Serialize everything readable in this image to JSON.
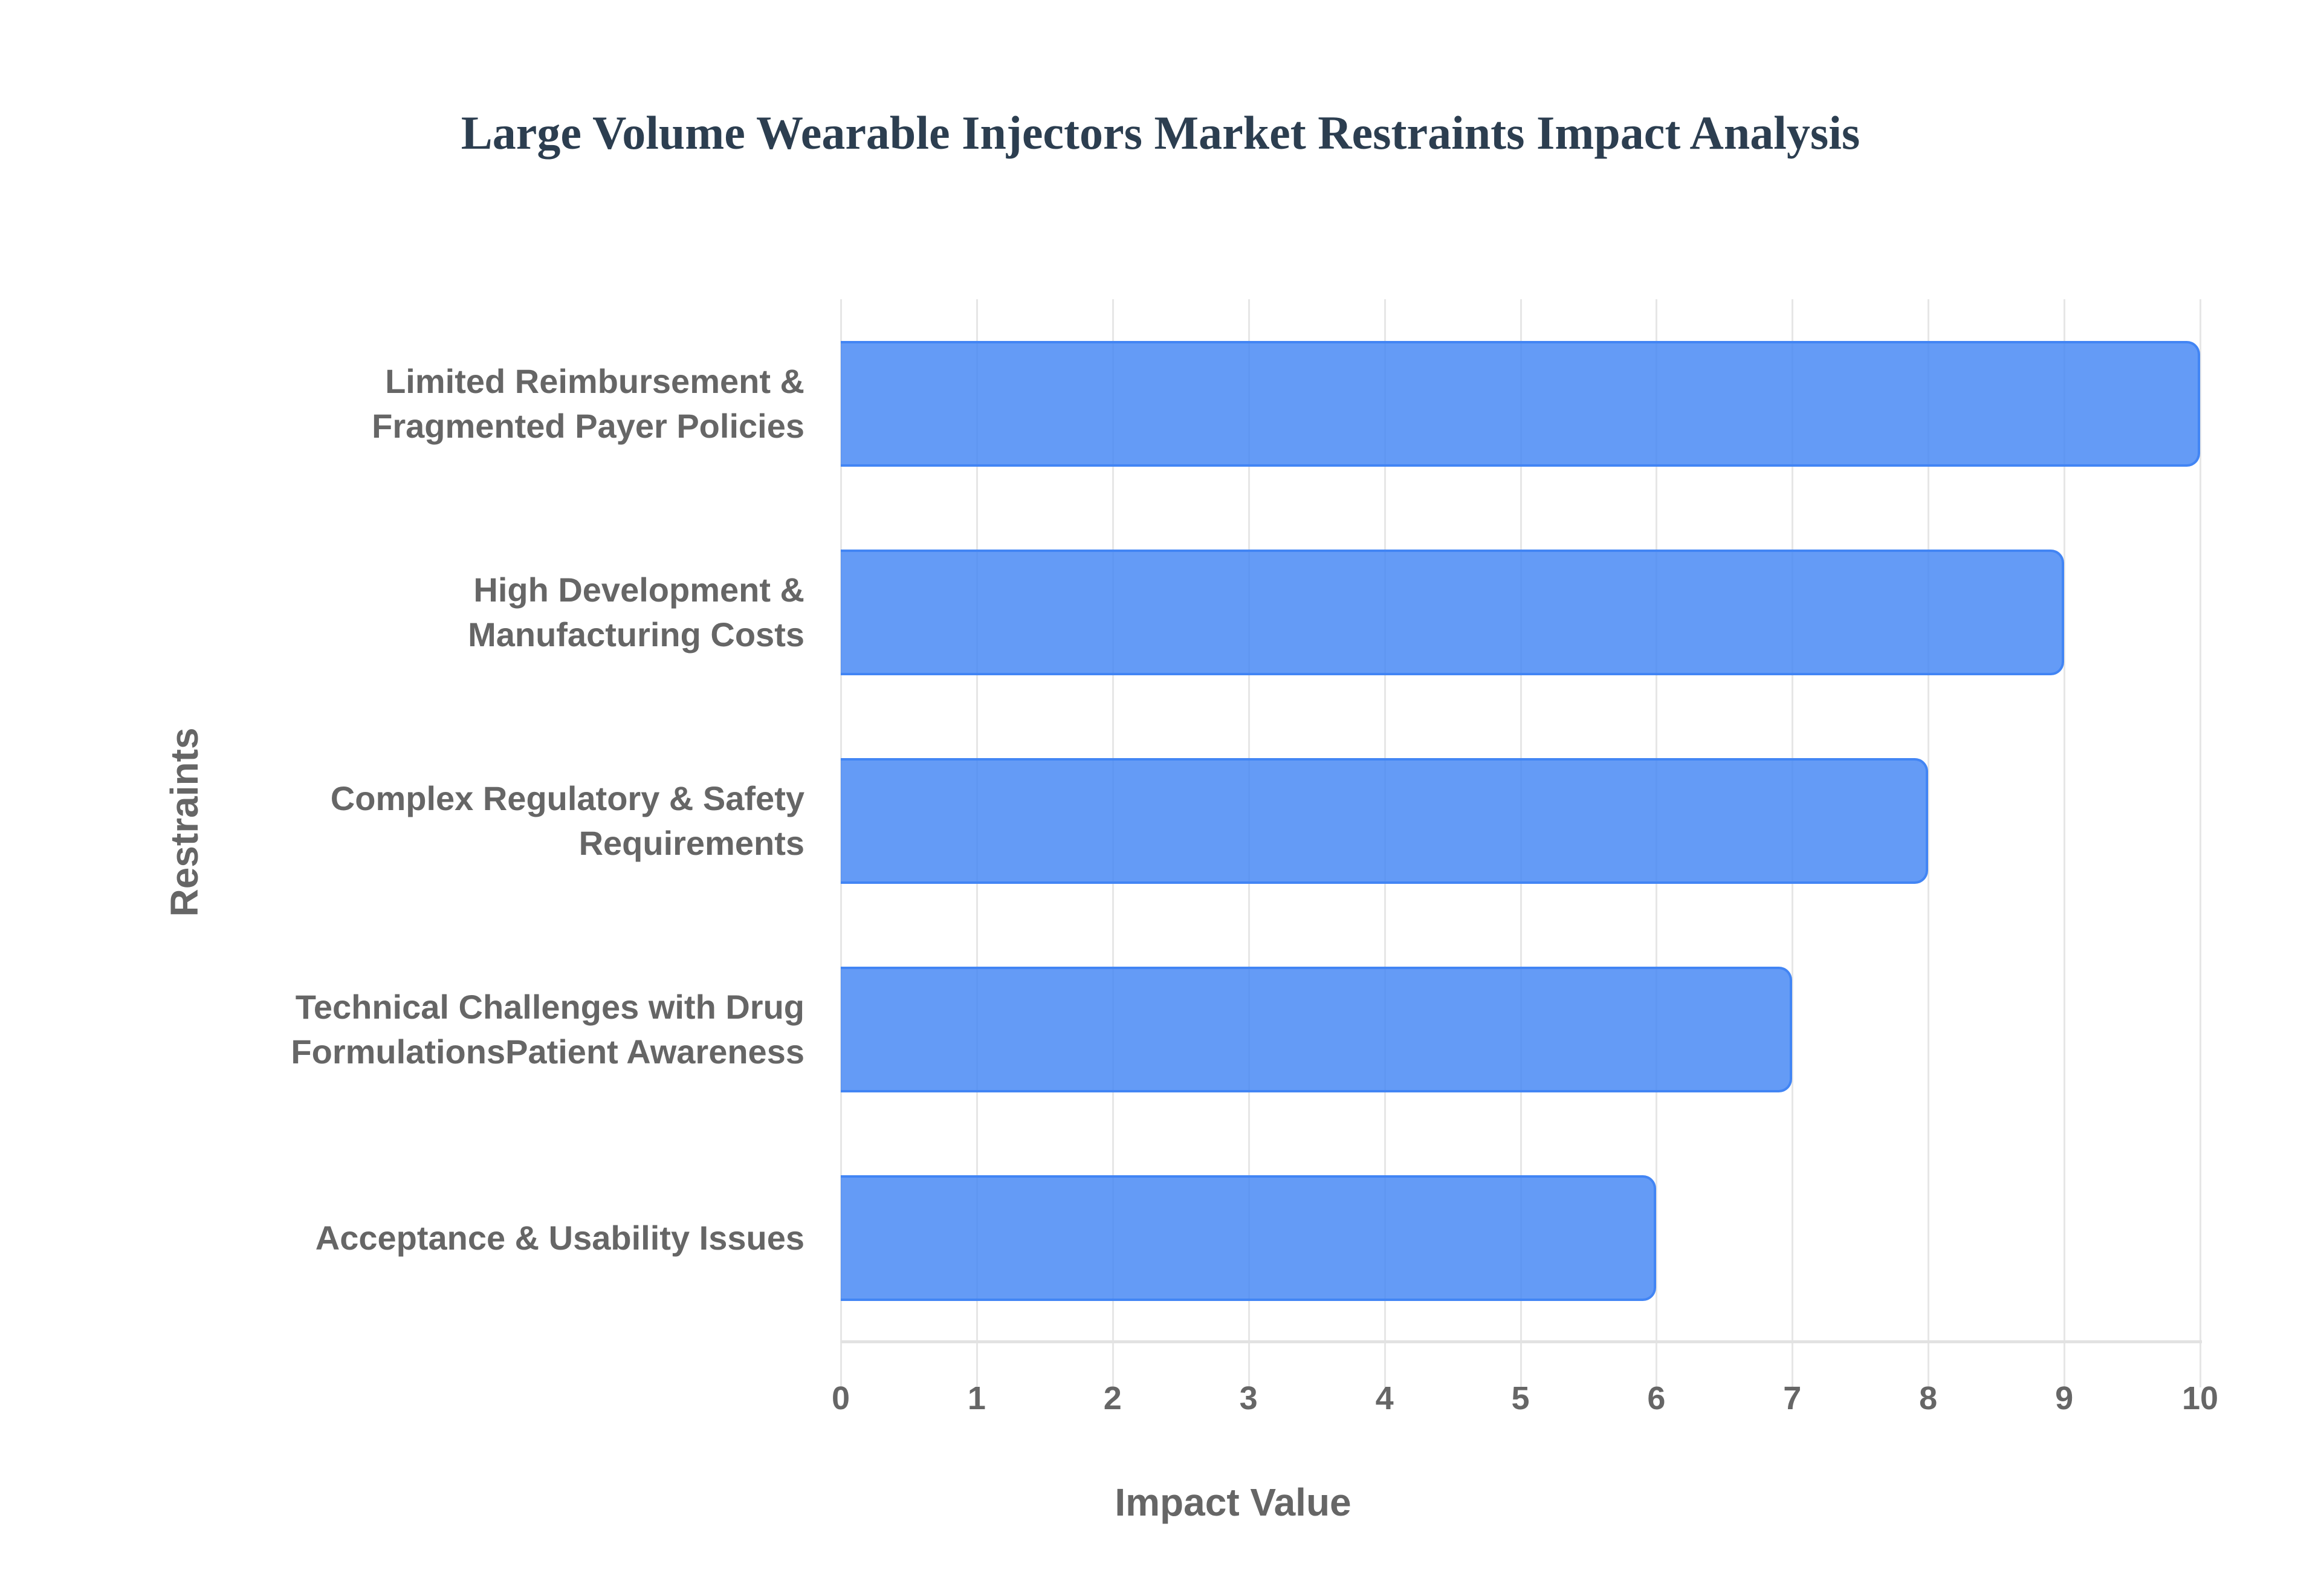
{
  "chart_data": {
    "type": "bar",
    "orientation": "horizontal",
    "title": "Large Volume Wearable Injectors Market Restraints Impact Analysis",
    "xlabel": "Impact Value",
    "ylabel": "Restraints",
    "categories": [
      "Limited Reimbursement & Fragmented Payer Policies",
      "High Development & Manufacturing Costs",
      "Complex Regulatory & Safety Requirements",
      "Technical Challenges with Drug FormulationsPatient Awareness",
      "Acceptance & Usability Issues"
    ],
    "values": [
      10,
      9,
      8,
      7,
      6
    ],
    "xlim": [
      0,
      10
    ],
    "xticks": [
      "0",
      "1",
      "2",
      "3",
      "4",
      "5",
      "6",
      "7",
      "8",
      "9",
      "10"
    ],
    "grid": true,
    "legend": "none",
    "bar_color": "#4285f4"
  },
  "labels": {
    "title": "Large Volume Wearable Injectors Market Restraints Impact Analysis",
    "xaxis_title": "Impact Value",
    "yaxis_title": "Restraints",
    "y": [
      [
        "Limited Reimbursement &",
        "Fragmented Payer Policies"
      ],
      [
        "High Development &",
        "Manufacturing Costs"
      ],
      [
        "Complex Regulatory & Safety",
        "Requirements"
      ],
      [
        "Technical Challenges with Drug",
        "FormulationsPatient Awareness"
      ],
      [
        "Acceptance & Usability Issues"
      ]
    ]
  }
}
